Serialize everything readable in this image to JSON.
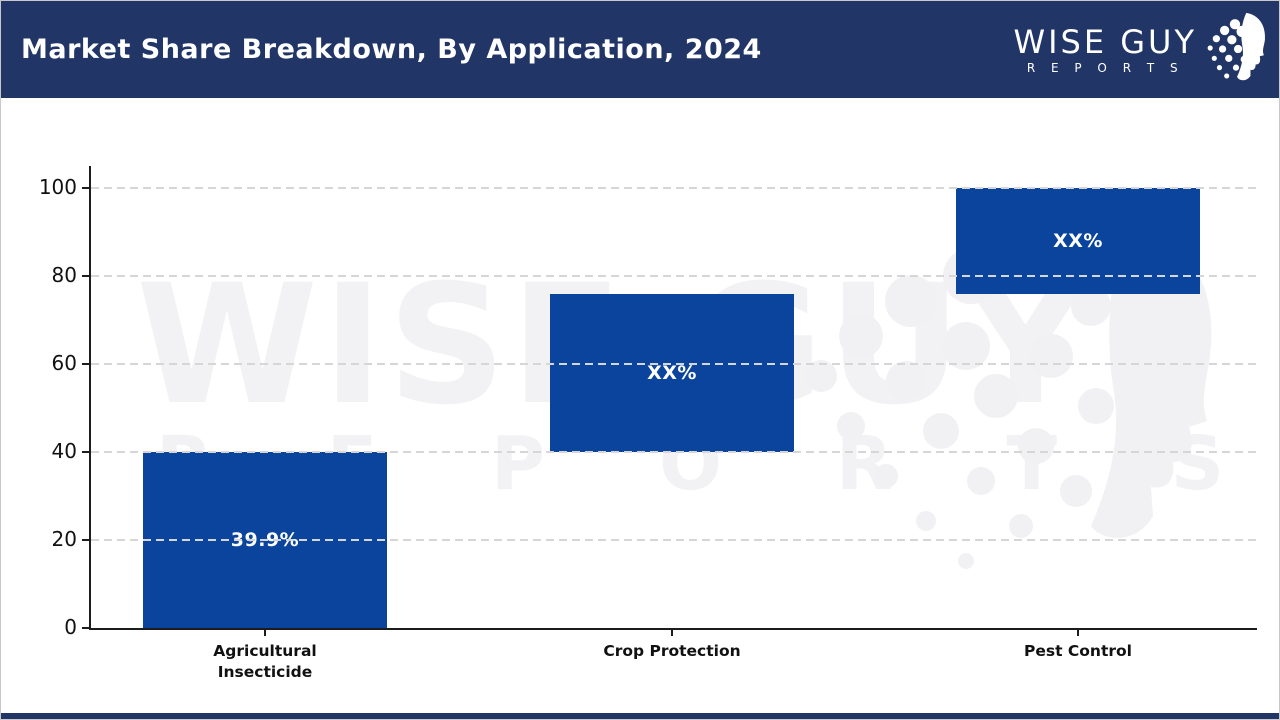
{
  "header": {
    "title": "Market Share Breakdown, By Application, 2024",
    "logo_line1": "WISE GUY",
    "logo_line2": "R E P O R T S"
  },
  "watermark": {
    "line1": "WISE GUY",
    "line2": "R E P O R T S"
  },
  "colors": {
    "header_bg": "#213567",
    "bar": "#0a449c",
    "bar_label": "#ffffff",
    "grid": "#d6d6d6",
    "axis": "#1c1c1c",
    "watermark": "#f2f2f4"
  },
  "chart_data": {
    "type": "bar",
    "variant": "waterfall-floating-segments",
    "title": "Market Share Breakdown, By Application, 2024",
    "categories": [
      "Agricultural Insecticide",
      "Crop Protection",
      "Pest Control"
    ],
    "segments": [
      {
        "category": "Agricultural Insecticide",
        "start": 0,
        "end": 39.9,
        "label": "39.9%"
      },
      {
        "category": "Crop Protection",
        "start": 40,
        "end": 76,
        "label": "XX%"
      },
      {
        "category": "Pest Control",
        "start": 76,
        "end": 100,
        "label": "XX%"
      }
    ],
    "xlabel": "",
    "ylabel": "",
    "ylim": [
      0,
      100
    ],
    "yticks": [
      0,
      20,
      40,
      60,
      80,
      100
    ],
    "grid": "horizontal-dashed",
    "legend": false,
    "bar_color": "#0a449c",
    "value_label_color": "#ffffff"
  }
}
